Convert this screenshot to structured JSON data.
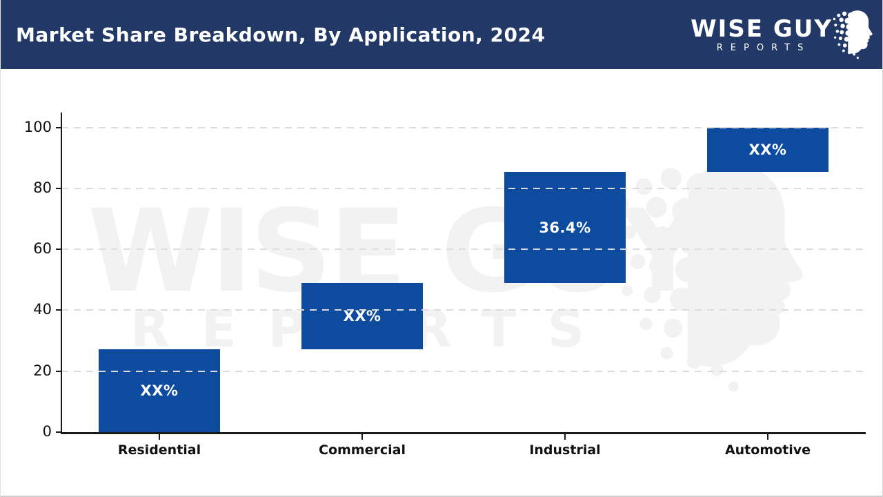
{
  "header": {
    "title": "Market Share Breakdown, By Application, 2024",
    "logo": {
      "line1": "WISE GUY",
      "line2": "REPORTS"
    }
  },
  "watermark": {
    "line1": "WISE GUY",
    "line2": "REPORTS"
  },
  "colors": {
    "header_bg": "#223866",
    "bar": "#0C4B9E",
    "grid": "#DCDCDC",
    "axis": "#1A1A1A",
    "watermark": "#F2F2F3",
    "title_text": "#FFFFFF",
    "bar_label_text": "#FFFFFF"
  },
  "chart_data": {
    "type": "bar",
    "subtype": "waterfall",
    "title": "Market Share Breakdown, By Application, 2024",
    "categories": [
      "Residential",
      "Commercial",
      "Industrial",
      "Automotive"
    ],
    "segments": [
      {
        "category": "Residential",
        "start": 0,
        "end": 27.2,
        "value": 27.2,
        "label": "XX%"
      },
      {
        "category": "Commercial",
        "start": 27.2,
        "end": 48.9,
        "value": 21.7,
        "label": "XX%"
      },
      {
        "category": "Industrial",
        "start": 48.9,
        "end": 85.3,
        "value": 36.4,
        "label": "36.4%"
      },
      {
        "category": "Automotive",
        "start": 85.3,
        "end": 100,
        "value": 14.7,
        "label": "XX%"
      }
    ],
    "xlabel": "",
    "ylabel": "",
    "ylim": [
      0,
      100
    ],
    "yticks": [
      0,
      20,
      40,
      60,
      80,
      100
    ],
    "grid": true,
    "grid_style": "dashed",
    "legend": false,
    "bar_color": "#0C4B9E",
    "value_label_color": "#FFFFFF"
  }
}
